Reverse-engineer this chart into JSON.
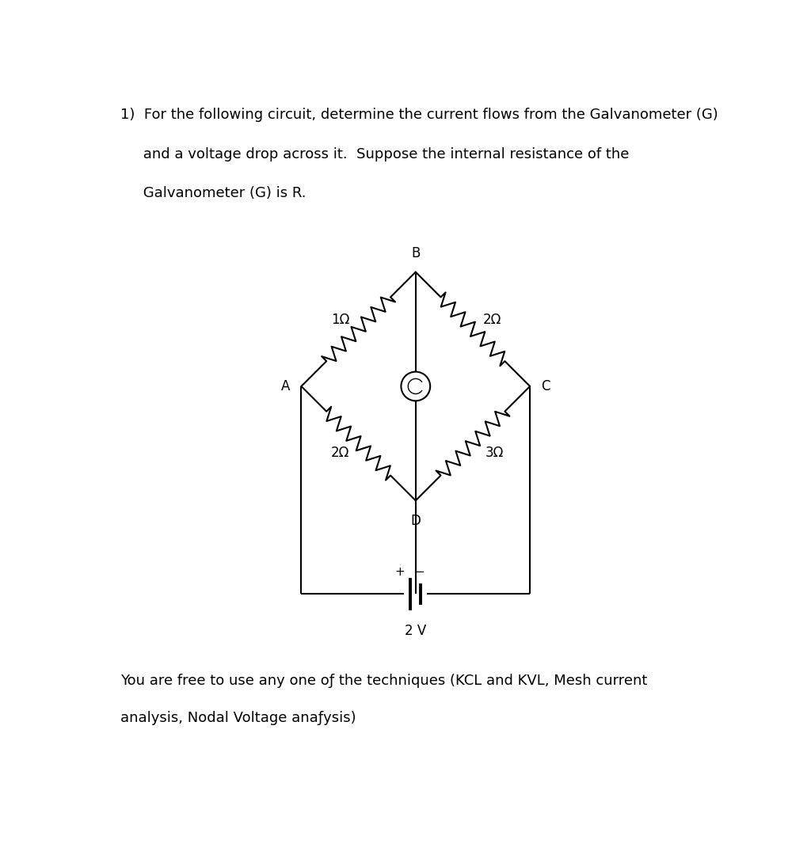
{
  "title_line1": "1)  For the following circuit, determine the current flows from the Galvanometer (G)",
  "title_line2": "     and a voltage drop across it.  Suppose the internal resistance of the",
  "title_line3": "     Galvanometer (G) is R.",
  "footer_line1": "You are free to use any one oƒ the techniques (KCL and KVL, Mesh current",
  "footer_line2": "analysis, Nodal Voltage anaƒysis)",
  "node_labels": {
    "A": "A",
    "B": "B",
    "C": "C",
    "D": "D"
  },
  "resistor_labels": {
    "AB": "1Ω",
    "BC": "2Ω",
    "AD": "2Ω",
    "DC": "3Ω"
  },
  "voltage_label": "2 V",
  "bg_color": "#ffffff",
  "line_color": "#000000",
  "text_color": "#000000",
  "font_size_title": 13,
  "font_size_labels": 11,
  "font_size_node": 11,
  "font_size_footer": 13
}
